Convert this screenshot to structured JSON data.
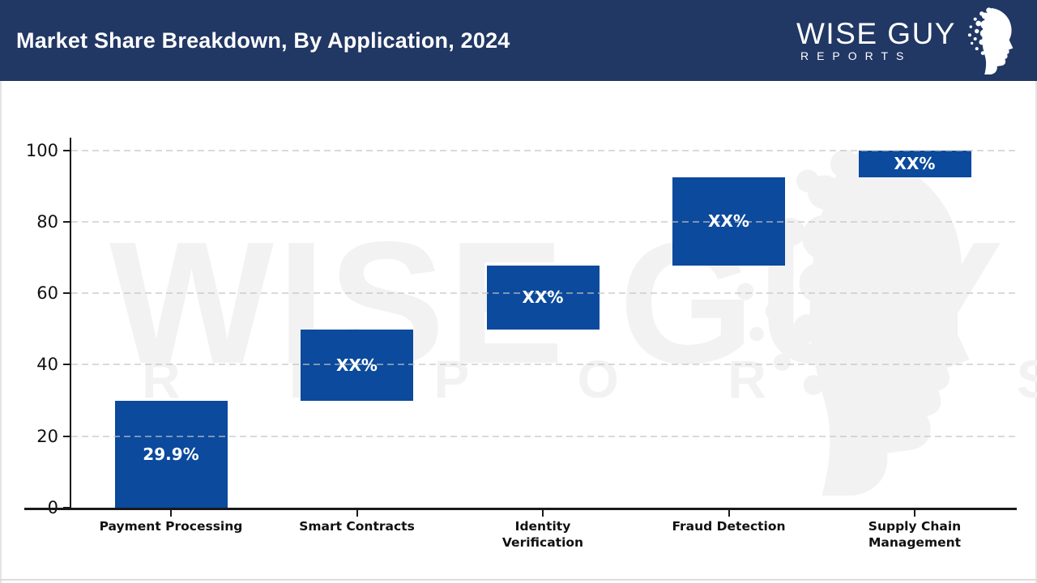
{
  "header": {
    "title": "Market Share Breakdown, By Application, 2024",
    "logo": {
      "line1": "WISE GUY",
      "line2": "REPORTS"
    }
  },
  "watermark": {
    "line1": "WISE GUY",
    "line2": "R E P O R T S"
  },
  "chart_data": {
    "type": "bar",
    "subtype": "waterfall",
    "title": "Market Share Breakdown, By Application, 2024",
    "categories": [
      "Payment Processing",
      "Smart Contracts",
      "Identity\nVerification",
      "Fraud Detection",
      "Supply Chain\nManagement"
    ],
    "segments": [
      {
        "category": "Payment Processing",
        "start": 0,
        "end": 29.9,
        "label": "29.9%"
      },
      {
        "category": "Smart Contracts",
        "start": 29.9,
        "end": 49.8,
        "label": "XX%"
      },
      {
        "category": "Identity Verification",
        "start": 49.8,
        "end": 67.8,
        "label": "XX%"
      },
      {
        "category": "Fraud Detection",
        "start": 67.8,
        "end": 92.4,
        "label": "XX%"
      },
      {
        "category": "Supply Chain Management",
        "start": 92.4,
        "end": 100,
        "label": "XX%"
      }
    ],
    "xlabel": "",
    "ylabel": "",
    "ylim": [
      0,
      100
    ],
    "yticks": [
      0,
      20,
      40,
      60,
      80,
      100
    ],
    "grid": "horizontal dashed, drawn over bars",
    "legend": "none",
    "bar_color": "#0b4a9c",
    "bar_label_color": "#ffffff",
    "axis_color": "#1a1a1a",
    "header_color": "#213764"
  },
  "icons": {
    "logo_head": "dotted-face-profile"
  }
}
